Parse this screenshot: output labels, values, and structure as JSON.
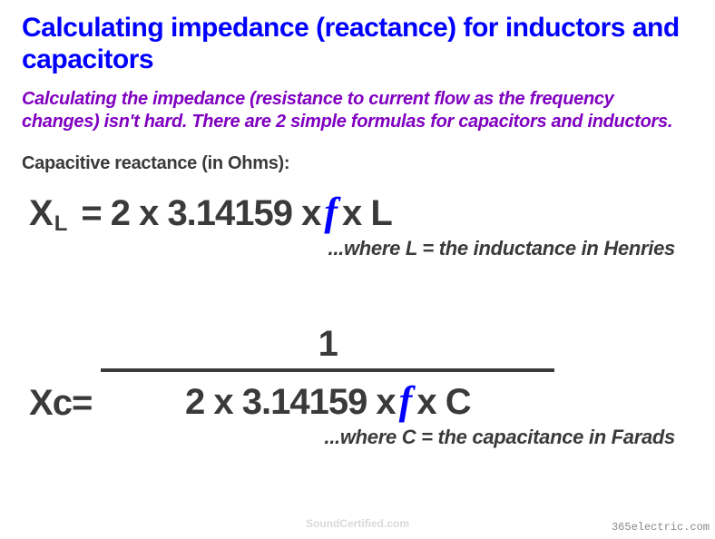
{
  "colors": {
    "title": "#0000ff",
    "subtitle": "#8000c0",
    "body": "#3a3a3a",
    "fvar": "#0000ff",
    "bar": "#3a3a3a",
    "watermark1": "#d9d9d9",
    "watermark2": "#888888",
    "background": "#ffffff"
  },
  "title": "Calculating impedance (reactance) for inductors and capacitors",
  "subtitle": "Calculating the impedance (resistance to current flow as the frequency changes) isn't hard. There are 2 simple formulas for capacitors and inductors.",
  "label": "Capacitive reactance (in Ohms):",
  "formula1": {
    "lhs_var": "X",
    "lhs_sub": "L",
    "eq": "=",
    "rhs_a": "2 x 3.14159 x",
    "rhs_f": "f",
    "rhs_b": "x L",
    "where": "...where L = the inductance in Henries"
  },
  "formula2": {
    "lhs_var": "X",
    "lhs_sub": "c",
    "eq": "=",
    "num": "1",
    "den_a": "2 x 3.14159 x",
    "den_f": "f",
    "den_b": "x C",
    "where": "...where C = the capacitance in Farads"
  },
  "watermark1": "SoundCertified.com",
  "watermark2": "365electric.com"
}
